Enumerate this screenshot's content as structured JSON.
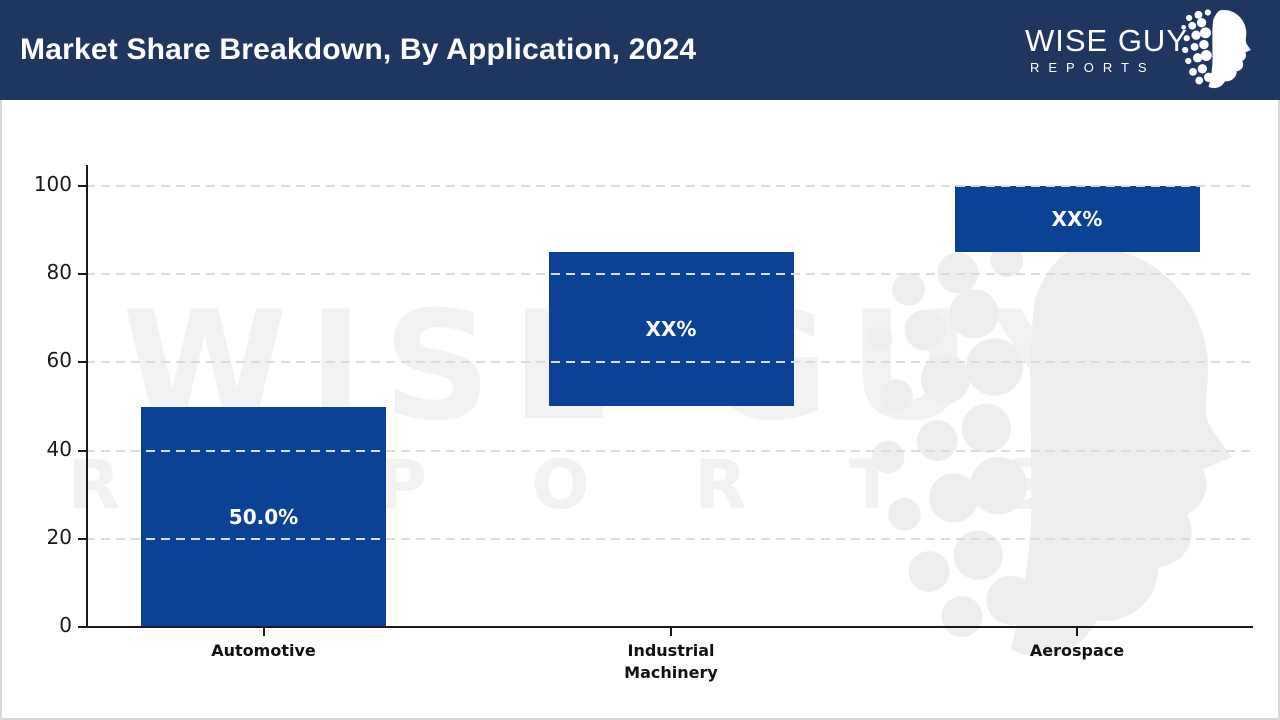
{
  "header": {
    "title": "Market Share Breakdown, By Application, 2024",
    "logo": {
      "name": "WISE GUY",
      "sub": "REPORTS"
    }
  },
  "watermark": {
    "line1": "WISE GUY",
    "line2": "REPORTS"
  },
  "colors": {
    "header_bg": "#1f3660",
    "bar": "#0b4296",
    "axis": "#1a1a1a",
    "grid": "#dcdcdc",
    "bar_label": "#ffffff",
    "watermark": "#f2f2f2",
    "frame": "#d9d9d9"
  },
  "chart_data": {
    "type": "bar",
    "variant": "floating-segment-waterfall",
    "title": "Market Share Breakdown, By Application, 2024",
    "categories": [
      "Automotive",
      "Industrial Machinery",
      "Aerospace"
    ],
    "categories_display": [
      "Automotive",
      "Industrial\nMachinery",
      "Aerospace"
    ],
    "segments": [
      {
        "category": "Automotive",
        "start": 0,
        "end": 50,
        "label": "50.0%"
      },
      {
        "category": "Industrial Machinery",
        "start": 50,
        "end": 85,
        "label": "XX%"
      },
      {
        "category": "Aerospace",
        "start": 85,
        "end": 100,
        "label": "XX%"
      }
    ],
    "xlabel": "",
    "ylabel": "",
    "ylim": [
      0,
      100
    ],
    "yticks": [
      0,
      20,
      40,
      60,
      80,
      100
    ],
    "grid": "horizontal-dashed",
    "legend": "none"
  }
}
